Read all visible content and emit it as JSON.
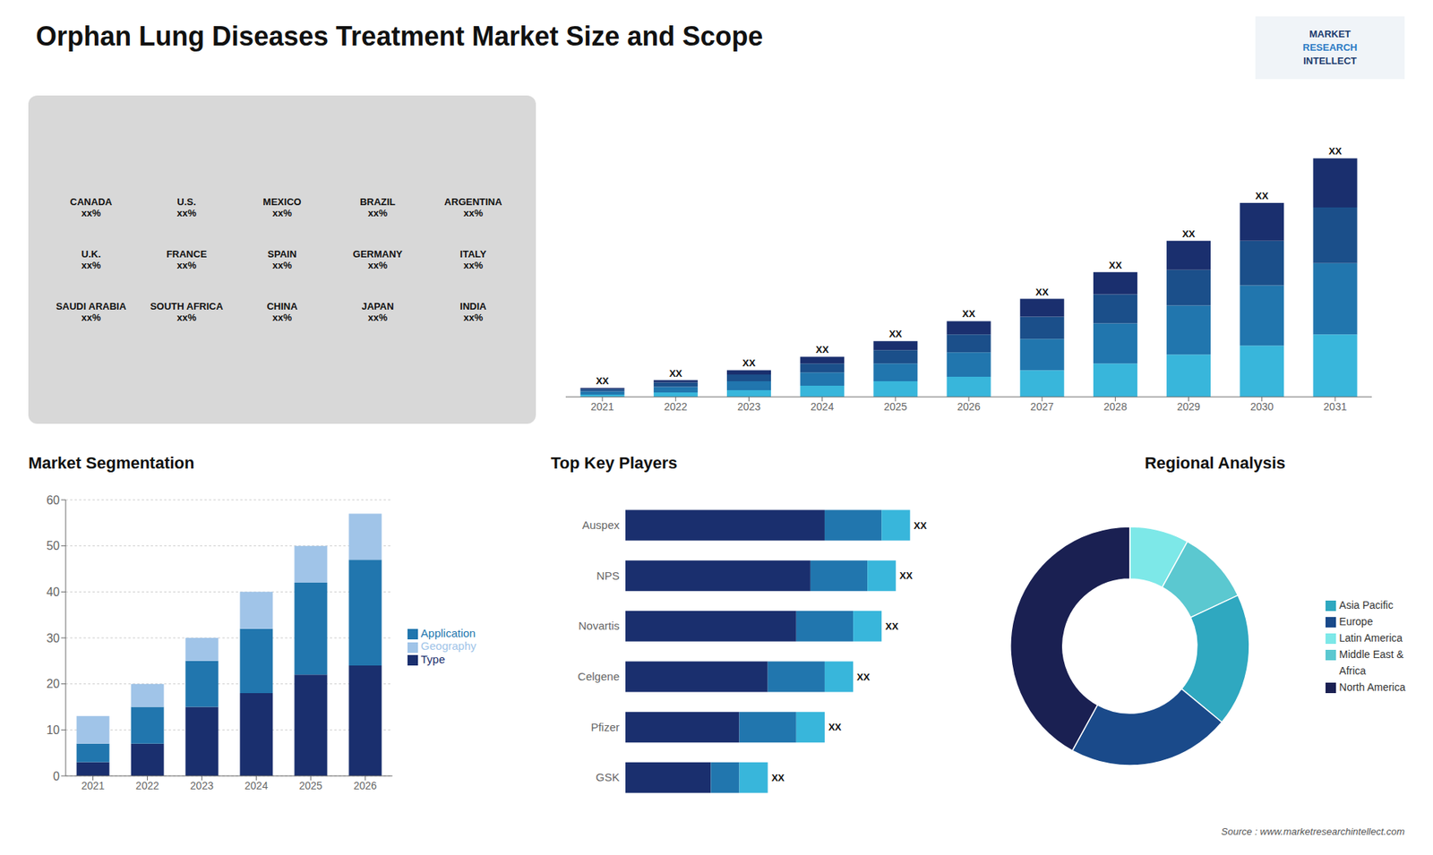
{
  "chart_data": [
    {
      "type": "map",
      "annotations": [
        "CANADA\nxx%",
        "U.S.\nxx%",
        "MEXICO\nxx%",
        "BRAZIL\nxx%",
        "ARGENTINA\nxx%",
        "U.K.\nxx%",
        "FRANCE\nxx%",
        "SPAIN\nxx%",
        "GERMANY\nxx%",
        "ITALY\nxx%",
        "SAUDI ARABIA\nxx%",
        "SOUTH AFRICA\nxx%",
        "CHINA\nxx%",
        "JAPAN\nxx%",
        "INDIA\nxx%"
      ]
    },
    {
      "type": "bar",
      "title": "Orphan Lung Diseases Treatment Market Size and Scope",
      "categories": [
        "2021",
        "2022",
        "2023",
        "2024",
        "2025",
        "2026",
        "2027",
        "2028",
        "2029",
        "2030",
        "2031"
      ],
      "series": [
        {
          "color": "#38b6db",
          "values": [
            1,
            2,
            3,
            5,
            7,
            9,
            12,
            15,
            19,
            23,
            28
          ]
        },
        {
          "color": "#2176ae",
          "values": [
            1.5,
            2.5,
            4,
            6,
            8,
            11,
            14,
            18,
            22,
            27,
            32
          ]
        },
        {
          "color": "#1b4f8a",
          "values": [
            1,
            2,
            3,
            4,
            6,
            8,
            10,
            13,
            16,
            20,
            25
          ]
        },
        {
          "color": "#1a2f6e",
          "values": [
            0.5,
            1,
            2,
            3,
            4,
            6,
            8,
            10,
            13,
            17,
            22
          ],
          "value_labels": [
            "XX",
            "XX",
            "XX",
            "XX",
            "XX",
            "XX",
            "XX",
            "XX",
            "XX",
            "XX",
            "XX"
          ]
        }
      ],
      "stacked": true,
      "data_labels": true,
      "ylim": [
        0,
        130.54
      ],
      "tick_labels": "x",
      "grid": false,
      "annotations": [
        "Source : www.marketresearchintellect.com",
        "MARKET",
        "RESEARCH",
        "INTELLECT"
      ]
    },
    {
      "type": "bar",
      "title": "Market Segmentation",
      "categories": [
        "2021",
        "2022",
        "2023",
        "2024",
        "2025",
        "2026"
      ],
      "series": [
        {
          "name": "Type",
          "color": "#1a2f6e",
          "values": [
            3,
            7,
            15,
            18,
            22,
            24
          ]
        },
        {
          "name": "Application",
          "color": "#2176ae",
          "values": [
            4,
            8,
            10,
            14,
            20,
            23
          ]
        },
        {
          "name": "Geography",
          "color": "#a0c4e8",
          "values": [
            6,
            5,
            5,
            8,
            8,
            10
          ]
        }
      ],
      "stacked": true,
      "ylim": [
        0,
        60
      ],
      "yticks": [
        0,
        10,
        20,
        30,
        40,
        50,
        60
      ],
      "grid": true,
      "legend": "right"
    },
    {
      "type": "bar",
      "title": "Top Key Players",
      "orientation": "horizontal",
      "categories": [
        "Auspex",
        "NPS",
        "Novartis",
        "Celgene",
        "Pfizer",
        "GSK"
      ],
      "series": [
        {
          "color": "#1a2f6e",
          "values": [
            70,
            65,
            60,
            50,
            40,
            30
          ]
        },
        {
          "color": "#2176ae",
          "values": [
            20,
            20,
            20,
            20,
            20,
            10
          ]
        },
        {
          "color": "#38b6db",
          "values": [
            10,
            10,
            10,
            10,
            10,
            10
          ],
          "value_labels": [
            "XX",
            "XX",
            "XX",
            "XX",
            "XX",
            "XX"
          ]
        }
      ],
      "stacked": true,
      "data_labels": true,
      "xlim": [
        0,
        118
      ],
      "tick_labels": "y",
      "grid": false
    },
    {
      "type": "pie",
      "title": "Regional Analysis",
      "categories": [
        "Latin America",
        "Middle East &\nAfrica",
        "Asia Pacific",
        "Europe",
        "North America"
      ],
      "values": [
        8,
        10,
        18,
        22,
        42
      ],
      "colors": [
        "#7de8e8",
        "#5bc8d0",
        "#2fa8c0",
        "#1a4a8a",
        "#1a2052"
      ],
      "legend": "right"
    }
  ]
}
